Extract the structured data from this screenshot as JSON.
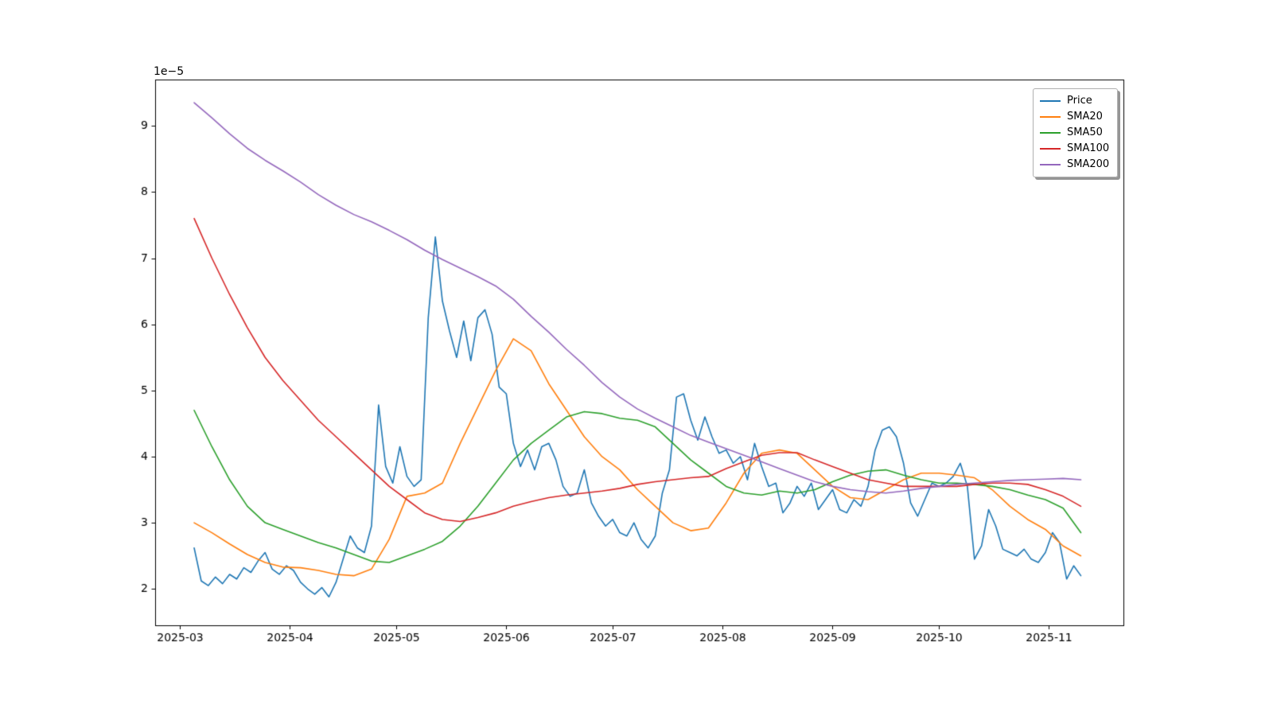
{
  "figure": {
    "background_color": "#ffffff",
    "frame_color": "#000000",
    "y_offset_label": "1e−5"
  },
  "chart_data": {
    "type": "line",
    "title": "",
    "xlabel": "",
    "ylabel": "",
    "y_offset_label": "1e−5",
    "grid": false,
    "x_tick_labels": [
      "2025-03",
      "2025-04",
      "2025-05",
      "2025-06",
      "2025-07",
      "2025-08",
      "2025-09",
      "2025-10",
      "2025-11"
    ],
    "y_ticks": [
      2,
      3,
      4,
      5,
      6,
      7,
      8,
      9
    ],
    "xlim": [
      "2025-02-22",
      "2025-11-22"
    ],
    "ylim": [
      1.45,
      9.7
    ],
    "value_units": "price × 1e-5",
    "legend": {
      "position": "upper right",
      "entries": [
        "Price",
        "SMA20",
        "SMA50",
        "SMA100",
        "SMA200"
      ]
    },
    "series": [
      {
        "name": "Price",
        "color": "#1f77b4",
        "start": "2025-03-05",
        "step_days": 2,
        "values": [
          2.62,
          2.12,
          2.05,
          2.18,
          2.08,
          2.22,
          2.15,
          2.32,
          2.25,
          2.42,
          2.55,
          2.3,
          2.22,
          2.35,
          2.28,
          2.1,
          2.0,
          1.92,
          2.02,
          1.88,
          2.1,
          2.45,
          2.8,
          2.62,
          2.55,
          2.95,
          4.78,
          3.85,
          3.6,
          4.15,
          3.7,
          3.55,
          3.65,
          6.1,
          7.32,
          6.35,
          5.9,
          5.5,
          6.05,
          5.45,
          6.1,
          6.22,
          5.85,
          5.05,
          4.95,
          4.2,
          3.85,
          4.1,
          3.8,
          4.15,
          4.2,
          3.95,
          3.55,
          3.4,
          3.45,
          3.8,
          3.3,
          3.1,
          2.95,
          3.05,
          2.85,
          2.8,
          3.0,
          2.75,
          2.62,
          2.8,
          3.45,
          3.8,
          4.9,
          4.95,
          4.55,
          4.25,
          4.6,
          4.3,
          4.05,
          4.1,
          3.9,
          4.0,
          3.65,
          4.2,
          3.85,
          3.55,
          3.6,
          3.15,
          3.3,
          3.55,
          3.4,
          3.6,
          3.2,
          3.35,
          3.5,
          3.2,
          3.15,
          3.35,
          3.25,
          3.55,
          4.1,
          4.4,
          4.45,
          4.3,
          3.9,
          3.3,
          3.1,
          3.35,
          3.6,
          3.55,
          3.6,
          3.7,
          3.9,
          3.55,
          2.45,
          2.65,
          3.2,
          2.95,
          2.6,
          2.55,
          2.5,
          2.6,
          2.45,
          2.4,
          2.55,
          2.85,
          2.7,
          2.15,
          2.35,
          2.2
        ]
      },
      {
        "name": "SMA20",
        "color": "#ff7f0e",
        "start": "2025-03-05",
        "step_days": 5,
        "values": [
          3.0,
          2.85,
          2.68,
          2.52,
          2.4,
          2.33,
          2.32,
          2.28,
          2.22,
          2.2,
          2.3,
          2.75,
          3.4,
          3.45,
          3.6,
          4.2,
          4.75,
          5.3,
          5.78,
          5.6,
          5.1,
          4.7,
          4.3,
          4.0,
          3.8,
          3.5,
          3.25,
          3.0,
          2.88,
          2.92,
          3.3,
          3.75,
          4.05,
          4.1,
          4.05,
          3.8,
          3.55,
          3.38,
          3.35,
          3.5,
          3.65,
          3.75,
          3.75,
          3.72,
          3.68,
          3.5,
          3.25,
          3.05,
          2.9,
          2.65,
          2.5
        ]
      },
      {
        "name": "SMA50",
        "color": "#2ca02c",
        "start": "2025-03-05",
        "step_days": 5,
        "values": [
          4.7,
          4.15,
          3.65,
          3.25,
          3.0,
          2.9,
          2.8,
          2.7,
          2.62,
          2.52,
          2.42,
          2.4,
          2.5,
          2.6,
          2.72,
          2.95,
          3.25,
          3.6,
          3.95,
          4.2,
          4.4,
          4.6,
          4.68,
          4.65,
          4.58,
          4.55,
          4.45,
          4.2,
          3.95,
          3.75,
          3.55,
          3.45,
          3.42,
          3.48,
          3.45,
          3.5,
          3.62,
          3.72,
          3.78,
          3.8,
          3.72,
          3.65,
          3.6,
          3.6,
          3.58,
          3.55,
          3.5,
          3.42,
          3.35,
          3.22,
          2.85
        ]
      },
      {
        "name": "SMA100",
        "color": "#d62728",
        "start": "2025-03-05",
        "step_days": 5,
        "values": [
          7.6,
          7.0,
          6.45,
          5.95,
          5.5,
          5.15,
          4.85,
          4.55,
          4.3,
          4.05,
          3.8,
          3.55,
          3.35,
          3.15,
          3.05,
          3.02,
          3.08,
          3.15,
          3.25,
          3.32,
          3.38,
          3.42,
          3.45,
          3.48,
          3.52,
          3.58,
          3.62,
          3.65,
          3.68,
          3.7,
          3.82,
          3.92,
          4.02,
          4.06,
          4.06,
          3.95,
          3.85,
          3.75,
          3.65,
          3.6,
          3.55,
          3.55,
          3.55,
          3.55,
          3.58,
          3.6,
          3.6,
          3.58,
          3.5,
          3.4,
          3.25
        ]
      },
      {
        "name": "SMA200",
        "color": "#9467bd",
        "start": "2025-03-05",
        "step_days": 5,
        "values": [
          9.35,
          9.12,
          8.88,
          8.66,
          8.48,
          8.32,
          8.15,
          7.96,
          7.8,
          7.66,
          7.55,
          7.42,
          7.28,
          7.12,
          6.98,
          6.85,
          6.72,
          6.58,
          6.38,
          6.12,
          5.88,
          5.62,
          5.38,
          5.12,
          4.9,
          4.72,
          4.58,
          4.45,
          4.32,
          4.22,
          4.12,
          4.02,
          3.92,
          3.82,
          3.72,
          3.62,
          3.55,
          3.5,
          3.47,
          3.45,
          3.48,
          3.52,
          3.55,
          3.58,
          3.6,
          3.62,
          3.64,
          3.65,
          3.66,
          3.67,
          3.65
        ]
      }
    ]
  }
}
